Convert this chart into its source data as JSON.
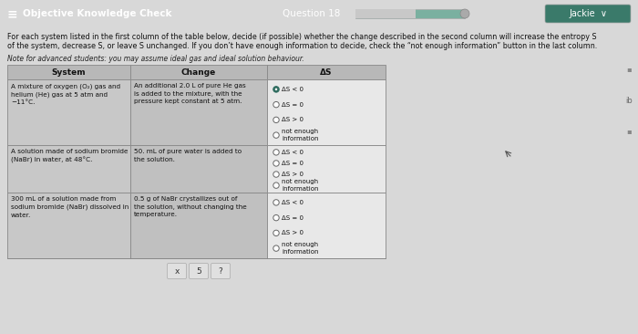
{
  "header_bg": "#2d6b5e",
  "header_text": "Objective Knowledge Check",
  "question_label": "Question 18",
  "body_bg": "#d8d8d8",
  "instruction_line1": "For each system listed in the first column of the table below, decide (if possible) whether the change described in the second column will increase the entropy S",
  "instruction_line2": "of the system, decrease S, or leave S unchanged. If you don’t have enough information to decide, check the “not enough information” button in the last column.",
  "note": "Note for advanced students: you may assume ideal gas and ideal solution behaviour.",
  "table_header": [
    "System",
    "Change",
    "ΔS"
  ],
  "rows": [
    {
      "system": "A mixture of oxygen (O₂) gas and\nhelium (He) gas at 5 atm and\n−11°C.",
      "change": "An additional 2.0 L of pure He gas\nis added to the mixture, with the\npressure kept constant at 5 atm.",
      "options": [
        "ΔS < 0",
        "ΔS = 0",
        "ΔS > 0",
        "not enough\ninformation"
      ],
      "selected": 0
    },
    {
      "system": "A solution made of sodium bromide\n(NaBr) in water, at 48°C.",
      "change": "50. mL of pure water is added to\nthe solution.",
      "options": [
        "ΔS < 0",
        "ΔS = 0",
        "ΔS > 0",
        "not enough\ninformation"
      ],
      "selected": null
    },
    {
      "system": "300 mL of a solution made from\nsodium bromide (NaBr) dissolved in\nwater.",
      "change": "0.5 g of NaBr crystallizes out of\nthe solution, without changing the\ntemperature.",
      "options": [
        "ΔS < 0",
        "ΔS = 0",
        "ΔS > 0",
        "not enough\ninformation"
      ],
      "selected": null
    }
  ],
  "table_bg_header": "#b8b8b8",
  "table_bg_col1": "#c8c8c8",
  "table_bg_col2": "#c0c0c0",
  "table_bg_col3": "#e8e8e8",
  "selected_fill": "#2d6b5e",
  "radio_color": "#666666",
  "footer_icons": [
    "x",
    "5",
    "?"
  ],
  "right_icons": [
    "■",
    "ib",
    "■"
  ],
  "progress_bg": "#7ab0a0",
  "progress_fill": "#c8c8c8",
  "jackie_box_color": "#3a7a6a"
}
